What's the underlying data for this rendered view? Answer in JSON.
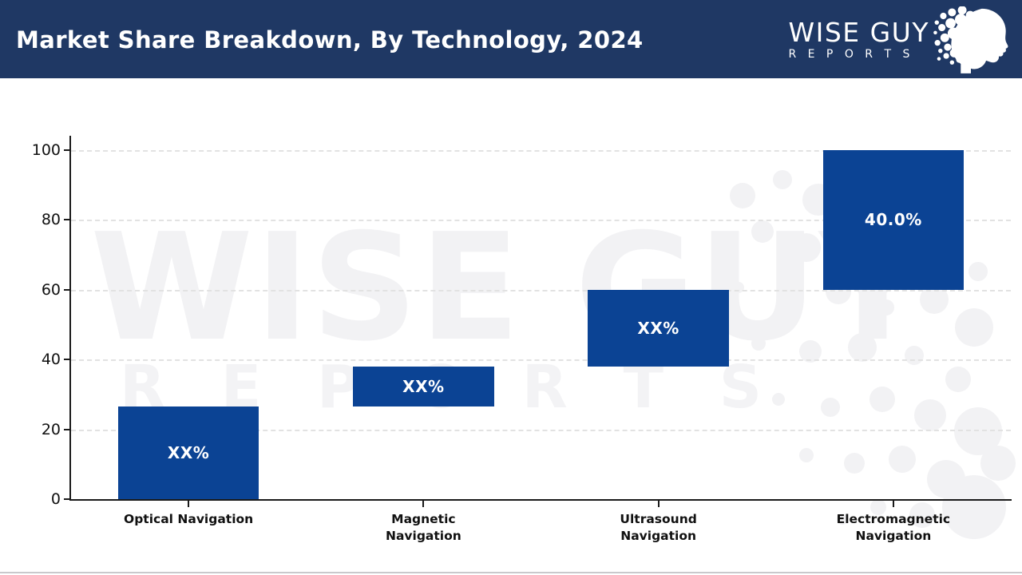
{
  "header": {
    "title": "Market Share Breakdown, By Technology, 2024",
    "logo": {
      "brand_top": "WISE GUY",
      "brand_bottom": "R E P O R T S"
    }
  },
  "watermark": {
    "text_top": "WISE GUY",
    "text_bottom": "R E P O R T S"
  },
  "colors": {
    "header_bg": "#1f3864",
    "bar_fill": "#0b4394",
    "bar_label_text": "#ffffff",
    "axis": "#1a1a1a",
    "gridline": "#e2e2e2",
    "tick_text": "#111111",
    "watermark": "#f2f2f4"
  },
  "chart_data": {
    "type": "bar",
    "variant": "waterfall",
    "title": "Market Share Breakdown, By Technology, 2024",
    "categories": [
      "Optical Navigation",
      "Magnetic Navigation",
      "Ultrasound Navigation",
      "Electromagnetic Navigation"
    ],
    "tick_labels": [
      [
        "Optical Navigation"
      ],
      [
        "Magnetic",
        "Navigation"
      ],
      [
        "Ultrasound",
        "Navigation"
      ],
      [
        "Electromagnetic",
        "Navigation"
      ]
    ],
    "series": [
      {
        "name": "Market share (%)",
        "segments": [
          {
            "category": "Optical Navigation",
            "start": 0,
            "end": 26.5,
            "label": "XX%"
          },
          {
            "category": "Magnetic Navigation",
            "start": 26.5,
            "end": 38,
            "label": "XX%"
          },
          {
            "category": "Ultrasound Navigation",
            "start": 38,
            "end": 60,
            "label": "XX%"
          },
          {
            "category": "Electromagnetic Navigation",
            "start": 60,
            "end": 100,
            "label": "40.0%"
          }
        ]
      }
    ],
    "xlabel": "",
    "ylabel": "",
    "ylim": [
      0,
      100
    ],
    "yticks": [
      0,
      20,
      40,
      60,
      80,
      100
    ],
    "grid": "horizontal-dashed",
    "legend": "none"
  }
}
